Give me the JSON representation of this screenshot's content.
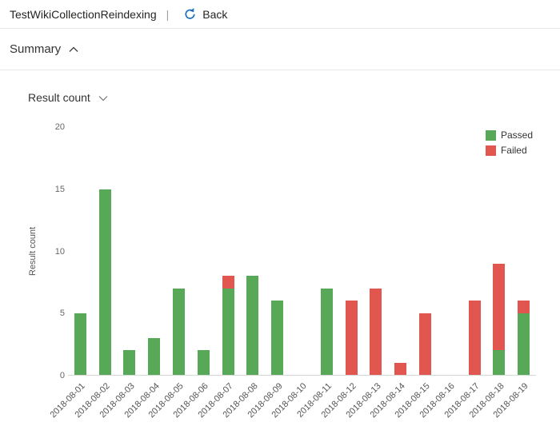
{
  "header": {
    "title": "TestWikiCollectionReindexing",
    "separator": "|",
    "back_label": "Back",
    "accent_color": "#1a6fbf"
  },
  "summary": {
    "label": "Summary"
  },
  "chart_controls": {
    "metric_label": "Result count"
  },
  "chart_data": {
    "type": "bar",
    "stacked": true,
    "title": "",
    "xlabel": "",
    "ylabel": "Result count",
    "ylim": [
      0,
      20
    ],
    "yticks": [
      0,
      5,
      10,
      15,
      20
    ],
    "grid": false,
    "legend_position": "top-right",
    "categories": [
      "2018-08-01",
      "2018-08-02",
      "2018-08-03",
      "2018-08-04",
      "2018-08-05",
      "2018-08-06",
      "2018-08-07",
      "2018-08-08",
      "2018-08-09",
      "2018-08-10",
      "2018-08-11",
      "2018-08-12",
      "2018-08-13",
      "2018-08-14",
      "2018-08-15",
      "2018-08-16",
      "2018-08-17",
      "2018-08-18",
      "2018-08-19"
    ],
    "series": [
      {
        "name": "Passed",
        "color": "#57a957",
        "values": [
          5,
          15,
          2,
          3,
          7,
          2,
          7,
          8,
          6,
          0,
          7,
          0,
          0,
          0,
          0,
          0,
          0,
          2,
          5
        ]
      },
      {
        "name": "Failed",
        "color": "#e25650",
        "values": [
          0,
          0,
          0,
          0,
          0,
          0,
          1,
          0,
          0,
          0,
          0,
          6,
          7,
          1,
          5,
          0,
          6,
          7,
          1
        ]
      }
    ]
  }
}
